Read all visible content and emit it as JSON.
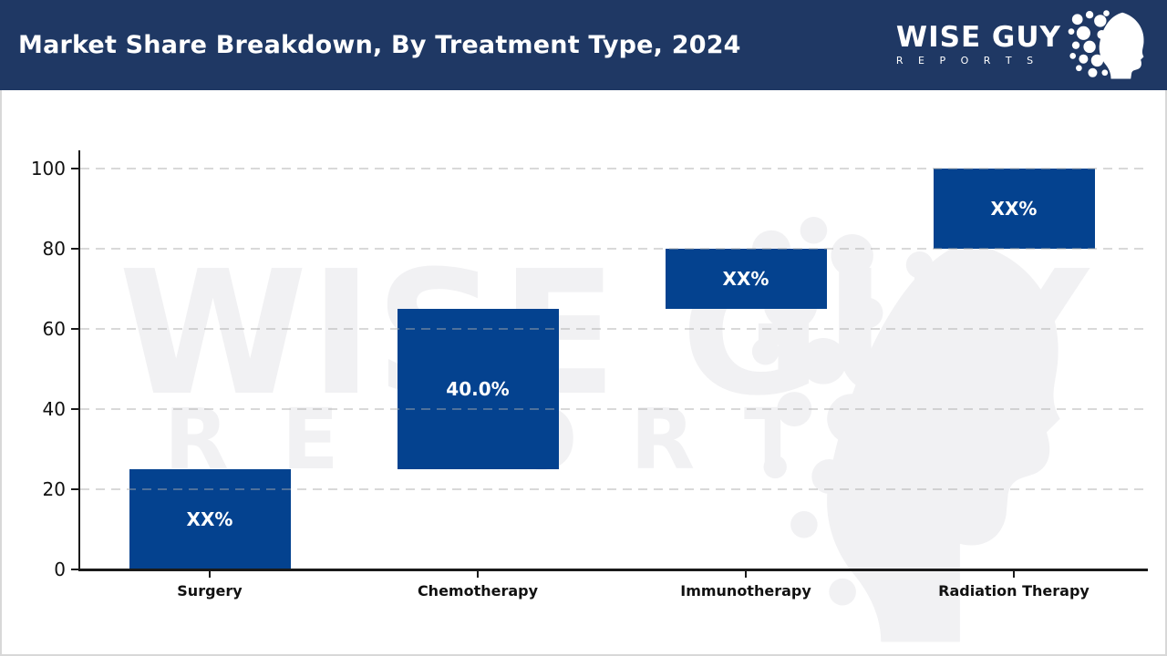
{
  "header": {
    "title": "Market Share Breakdown, By Treatment Type, 2024",
    "logo": {
      "name_line": "WISE GUY",
      "sub_line": "R E P O R T S"
    }
  },
  "watermark": {
    "name_line": "WISE GUY",
    "sub_line": "REPORTS"
  },
  "chart_data": {
    "type": "bar",
    "subtype": "floating-waterfall-bars",
    "title": "Market Share Breakdown, By Treatment Type, 2024",
    "categories": [
      "Surgery",
      "Chemotherapy",
      "Immunotherapy",
      "Radiation Therapy"
    ],
    "series": [
      {
        "name": "Market share (%)",
        "segments": [
          {
            "category": "Surgery",
            "start": 0,
            "end": 25,
            "value_label": "XX%"
          },
          {
            "category": "Chemotherapy",
            "start": 25,
            "end": 65,
            "value_label": "40.0%"
          },
          {
            "category": "Immunotherapy",
            "start": 65,
            "end": 80,
            "value_label": "XX%"
          },
          {
            "category": "Radiation Therapy",
            "start": 80,
            "end": 100,
            "value_label": "XX%"
          }
        ]
      }
    ],
    "xlabel": "",
    "ylabel": "",
    "ylim": [
      0,
      105
    ],
    "yticks": [
      0,
      20,
      40,
      60,
      80,
      100
    ],
    "grid": "horizontal-dashed",
    "legend": "none",
    "bar_color": "#04428f",
    "bar_label_color": "#ffffff"
  },
  "colors": {
    "header_bg": "#1f3864",
    "bar": "#04428f",
    "axis": "#1a1a1a",
    "grid_on_white": "#dcdcdc",
    "watermark": "#f1f1f3",
    "page_bg": "#ffffff",
    "frame_border": "#d8d8d8"
  }
}
